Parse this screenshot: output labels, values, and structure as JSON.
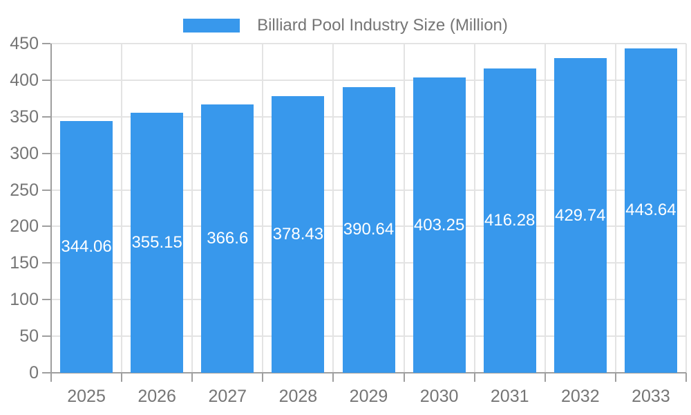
{
  "legend": {
    "label": "Billiard Pool Industry Size (Million)"
  },
  "colors": {
    "bar": "#3898EC",
    "axis_line": "#9E9E9E",
    "grid_line": "#E3E3E3",
    "axis_text": "#757575",
    "bar_label_text": "#FFFFFF",
    "background": "#FFFFFF"
  },
  "chart_data": {
    "type": "bar",
    "title": "Billiard Pool Industry Size (Million)",
    "legend_position": "top",
    "legend_entries": [
      "Billiard Pool Industry Size (Million)"
    ],
    "categories": [
      "2025",
      "2026",
      "2027",
      "2028",
      "2029",
      "2030",
      "2031",
      "2032",
      "2033"
    ],
    "series": [
      {
        "name": "Billiard Pool Industry Size (Million)",
        "values": [
          344.06,
          355.15,
          366.6,
          378.43,
          390.64,
          403.25,
          416.28,
          429.74,
          443.64
        ]
      }
    ],
    "data_labels": [
      "344.06",
      "355.15",
      "366.6",
      "378.43",
      "390.64",
      "403.25",
      "416.28",
      "429.74",
      "443.64"
    ],
    "data_label_position": "inside-middle",
    "xlabel": "",
    "ylabel": "",
    "ylim": [
      0,
      450
    ],
    "yticks": [
      0,
      50,
      100,
      150,
      200,
      250,
      300,
      350,
      400,
      450
    ],
    "grid": "horizontal and vertical lines"
  }
}
